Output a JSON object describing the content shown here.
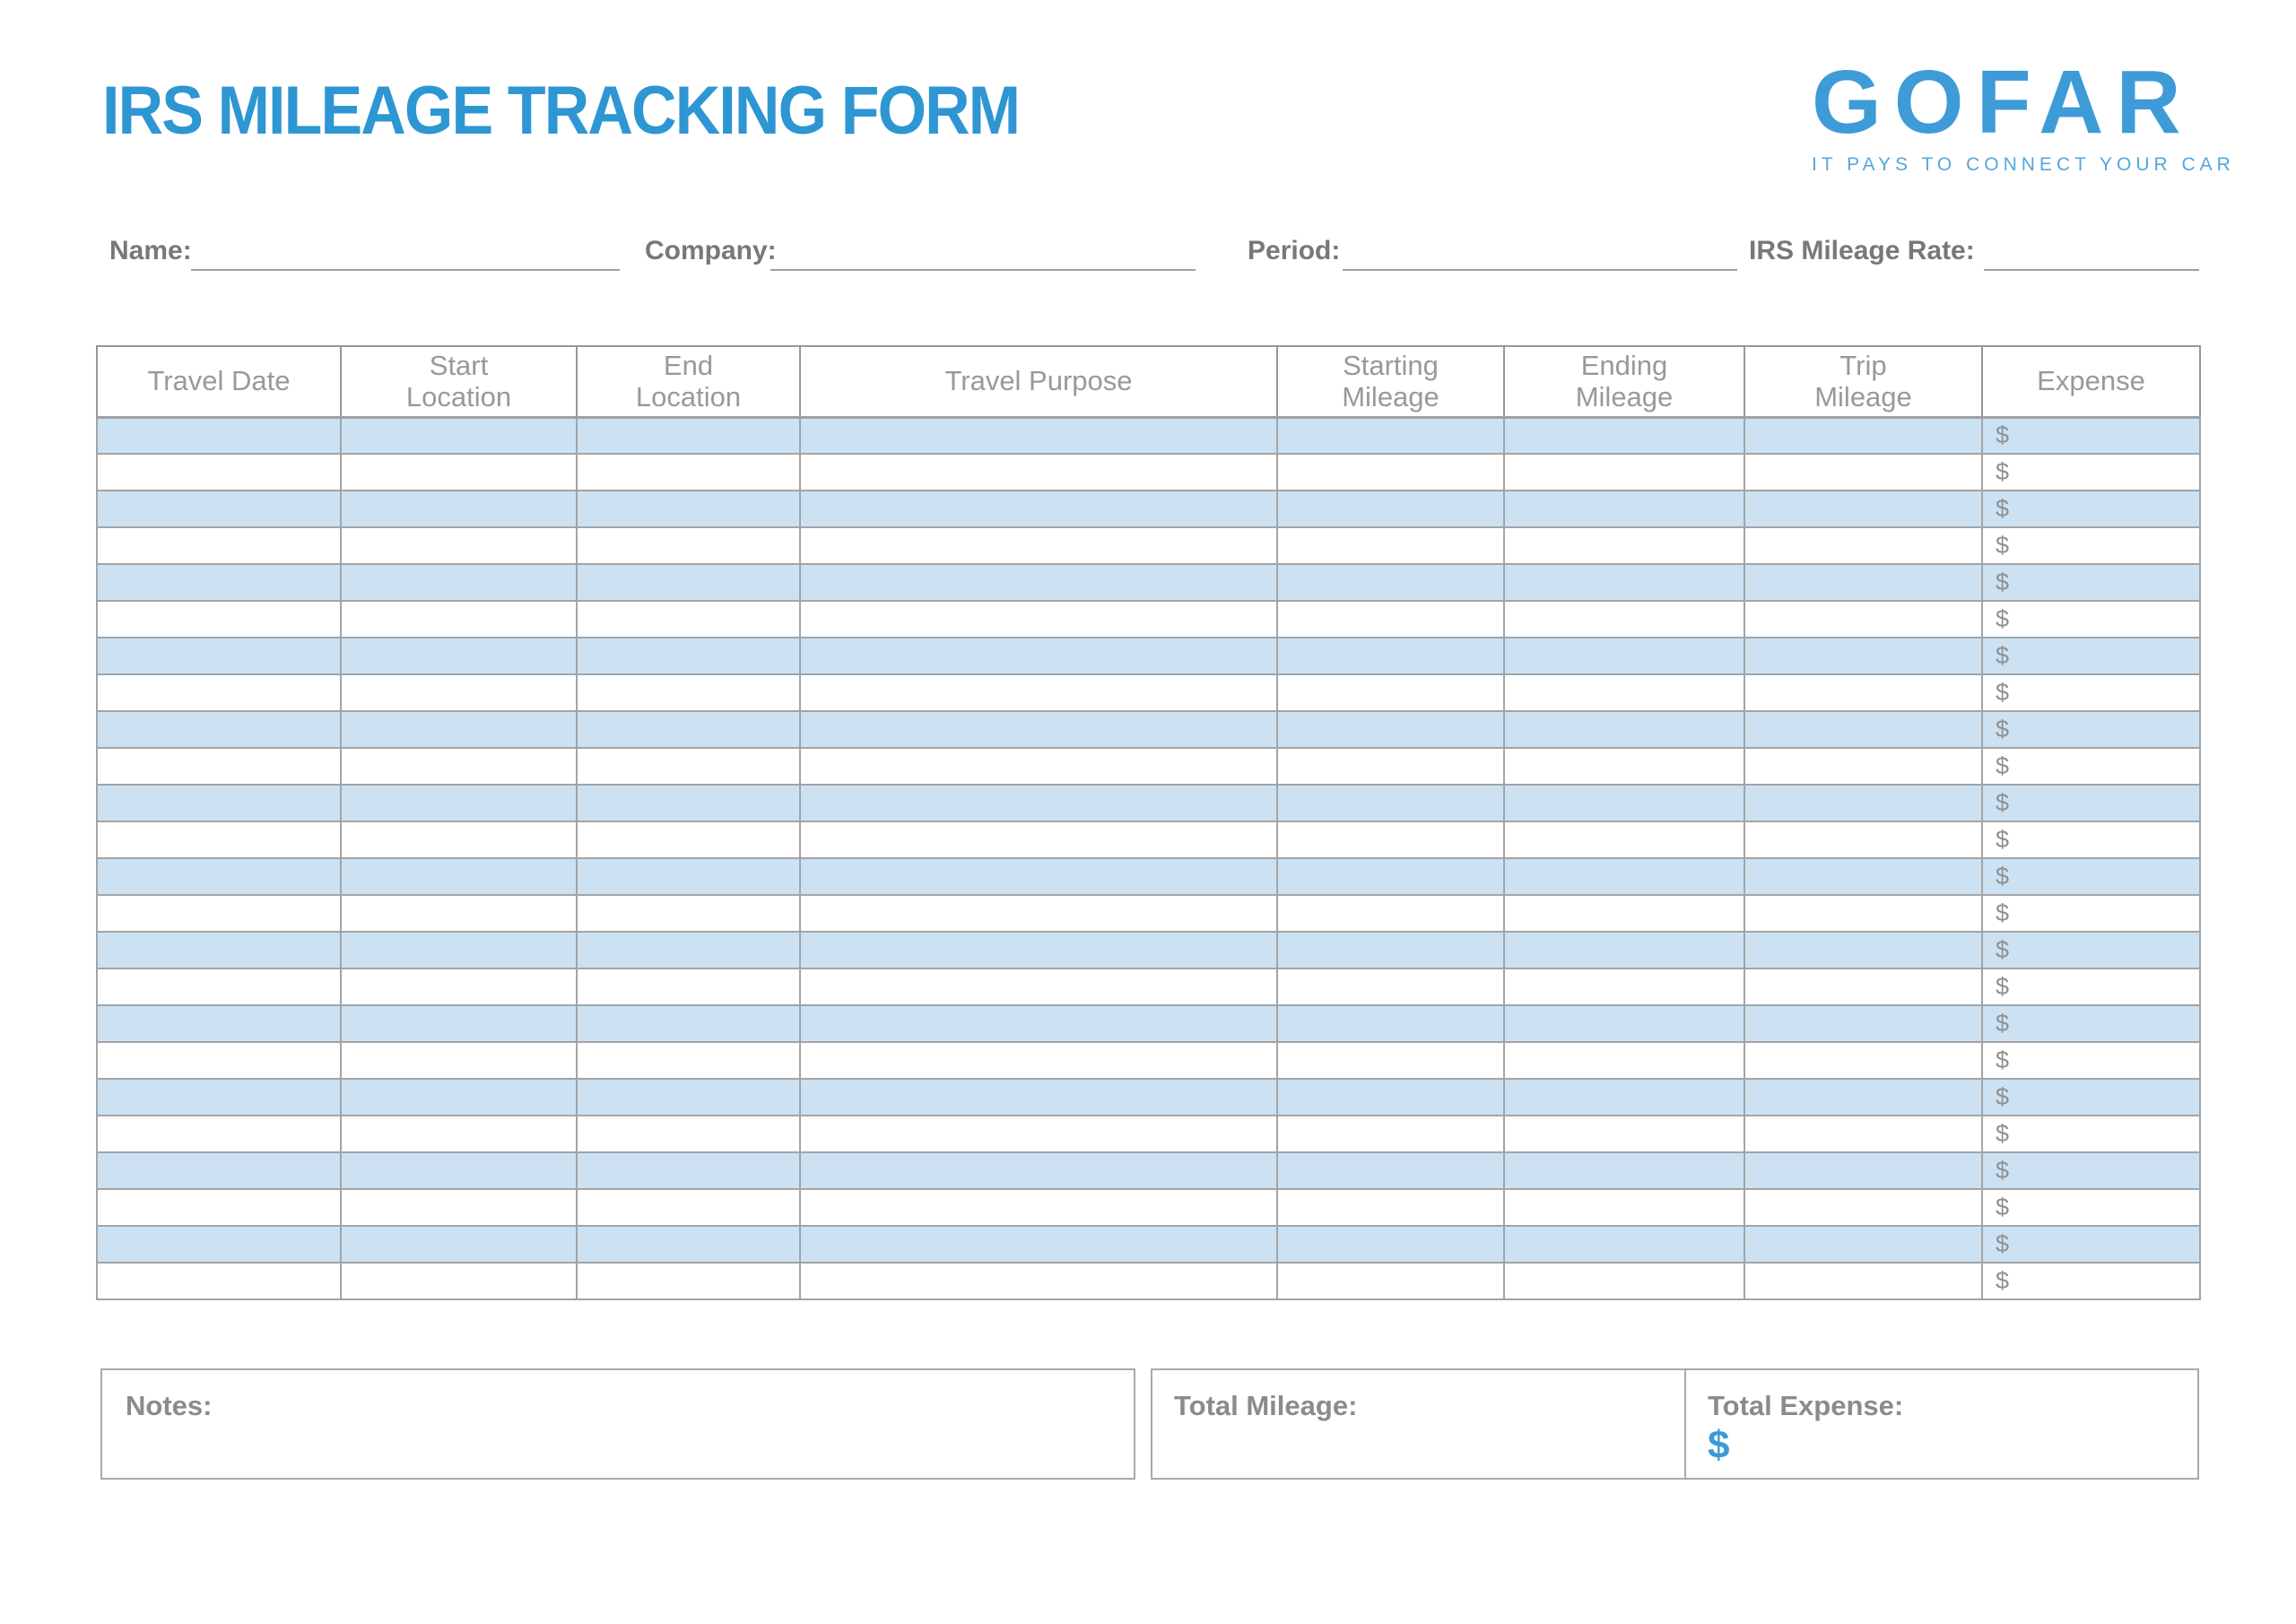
{
  "page": {
    "title": "IRS MILEAGE TRACKING FORM"
  },
  "logo": {
    "name": "GOFAR",
    "tagline": "IT PAYS TO CONNECT YOUR CAR"
  },
  "colors": {
    "title_blue": "#2E96D3",
    "logo_blue": "#3E9BD8",
    "row_stripe_blue": "#CCE2F2",
    "label_gray": "#77787B",
    "header_gray": "#97999C",
    "border_gray": "#A2A4A7",
    "total_expense_blue": "#3A9AD9"
  },
  "fields": [
    {
      "id": "name",
      "label": "Name:",
      "value": ""
    },
    {
      "id": "company",
      "label": "Company:",
      "value": ""
    },
    {
      "id": "period",
      "label": "Period:",
      "value": ""
    },
    {
      "id": "irs_mileage_rate",
      "label": "IRS Mileage Rate:",
      "value": ""
    }
  ],
  "table": {
    "columns": [
      "Travel Date",
      "Start\nLocation",
      "End\nLocation",
      "Travel Purpose",
      "Starting\nMileage",
      "Ending\nMileage",
      "Trip\nMileage",
      "Expense"
    ],
    "row_count": 24,
    "rows": [
      {
        "travel_date": "",
        "start_location": "",
        "end_location": "",
        "travel_purpose": "",
        "starting_mileage": "",
        "ending_mileage": "",
        "trip_mileage": "",
        "expense": "$"
      },
      {
        "travel_date": "",
        "start_location": "",
        "end_location": "",
        "travel_purpose": "",
        "starting_mileage": "",
        "ending_mileage": "",
        "trip_mileage": "",
        "expense": "$"
      },
      {
        "travel_date": "",
        "start_location": "",
        "end_location": "",
        "travel_purpose": "",
        "starting_mileage": "",
        "ending_mileage": "",
        "trip_mileage": "",
        "expense": "$"
      },
      {
        "travel_date": "",
        "start_location": "",
        "end_location": "",
        "travel_purpose": "",
        "starting_mileage": "",
        "ending_mileage": "",
        "trip_mileage": "",
        "expense": "$"
      },
      {
        "travel_date": "",
        "start_location": "",
        "end_location": "",
        "travel_purpose": "",
        "starting_mileage": "",
        "ending_mileage": "",
        "trip_mileage": "",
        "expense": "$"
      },
      {
        "travel_date": "",
        "start_location": "",
        "end_location": "",
        "travel_purpose": "",
        "starting_mileage": "",
        "ending_mileage": "",
        "trip_mileage": "",
        "expense": "$"
      },
      {
        "travel_date": "",
        "start_location": "",
        "end_location": "",
        "travel_purpose": "",
        "starting_mileage": "",
        "ending_mileage": "",
        "trip_mileage": "",
        "expense": "$"
      },
      {
        "travel_date": "",
        "start_location": "",
        "end_location": "",
        "travel_purpose": "",
        "starting_mileage": "",
        "ending_mileage": "",
        "trip_mileage": "",
        "expense": "$"
      },
      {
        "travel_date": "",
        "start_location": "",
        "end_location": "",
        "travel_purpose": "",
        "starting_mileage": "",
        "ending_mileage": "",
        "trip_mileage": "",
        "expense": "$"
      },
      {
        "travel_date": "",
        "start_location": "",
        "end_location": "",
        "travel_purpose": "",
        "starting_mileage": "",
        "ending_mileage": "",
        "trip_mileage": "",
        "expense": "$"
      },
      {
        "travel_date": "",
        "start_location": "",
        "end_location": "",
        "travel_purpose": "",
        "starting_mileage": "",
        "ending_mileage": "",
        "trip_mileage": "",
        "expense": "$"
      },
      {
        "travel_date": "",
        "start_location": "",
        "end_location": "",
        "travel_purpose": "",
        "starting_mileage": "",
        "ending_mileage": "",
        "trip_mileage": "",
        "expense": "$"
      },
      {
        "travel_date": "",
        "start_location": "",
        "end_location": "",
        "travel_purpose": "",
        "starting_mileage": "",
        "ending_mileage": "",
        "trip_mileage": "",
        "expense": "$"
      },
      {
        "travel_date": "",
        "start_location": "",
        "end_location": "",
        "travel_purpose": "",
        "starting_mileage": "",
        "ending_mileage": "",
        "trip_mileage": "",
        "expense": "$"
      },
      {
        "travel_date": "",
        "start_location": "",
        "end_location": "",
        "travel_purpose": "",
        "starting_mileage": "",
        "ending_mileage": "",
        "trip_mileage": "",
        "expense": "$"
      },
      {
        "travel_date": "",
        "start_location": "",
        "end_location": "",
        "travel_purpose": "",
        "starting_mileage": "",
        "ending_mileage": "",
        "trip_mileage": "",
        "expense": "$"
      },
      {
        "travel_date": "",
        "start_location": "",
        "end_location": "",
        "travel_purpose": "",
        "starting_mileage": "",
        "ending_mileage": "",
        "trip_mileage": "",
        "expense": "$"
      },
      {
        "travel_date": "",
        "start_location": "",
        "end_location": "",
        "travel_purpose": "",
        "starting_mileage": "",
        "ending_mileage": "",
        "trip_mileage": "",
        "expense": "$"
      },
      {
        "travel_date": "",
        "start_location": "",
        "end_location": "",
        "travel_purpose": "",
        "starting_mileage": "",
        "ending_mileage": "",
        "trip_mileage": "",
        "expense": "$"
      },
      {
        "travel_date": "",
        "start_location": "",
        "end_location": "",
        "travel_purpose": "",
        "starting_mileage": "",
        "end_location_2": "",
        "trip_mileage": "",
        "ending_mileage": "",
        "expense": "$"
      },
      {
        "travel_date": "",
        "start_location": "",
        "end_location": "",
        "travel_purpose": "",
        "starting_mileage": "",
        "ending_mileage": "",
        "trip_mileage": "",
        "expense": "$"
      },
      {
        "travel_date": "",
        "start_location": "",
        "end_location": "",
        "travel_purpose": "",
        "starting_mileage": "",
        "ending_mileage": "",
        "trip_mileage": "",
        "expense": "$"
      },
      {
        "travel_date": "",
        "start_location": "",
        "end_location": "",
        "travel_purpose": "",
        "starting_mileage": "",
        "ending_mileage": "",
        "trip_mileage": "",
        "expense": "$"
      },
      {
        "travel_date": "",
        "start_location": "",
        "end_location": "",
        "travel_purpose": "",
        "starting_mileage": "",
        "ending_mileage": "",
        "trip_mileage": "",
        "expense": "$"
      }
    ]
  },
  "footer": {
    "notes_label": "Notes:",
    "total_mileage_label": "Total Mileage:",
    "total_expense_label": "Total Expense:",
    "total_expense_symbol": "$"
  }
}
